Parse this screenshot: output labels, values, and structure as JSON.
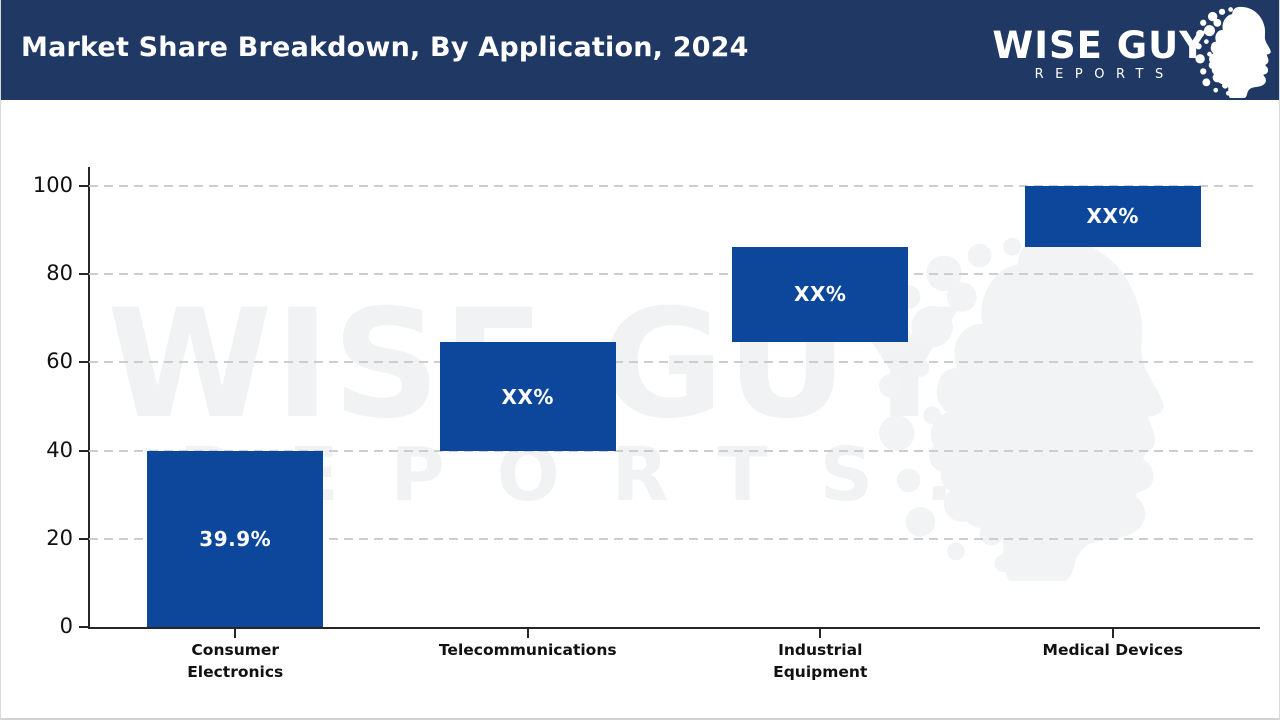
{
  "header": {
    "title": "Market Share Breakdown, By Application, 2024",
    "logo": {
      "line1": "WISE GUY",
      "line2": "REPORTS"
    }
  },
  "watermark": {
    "line1": "WISE GUY.",
    "line2": "REPORTS."
  },
  "chart_data": {
    "type": "bar",
    "subtype": "waterfall",
    "title": "Market Share Breakdown, By Application, 2024",
    "categories": [
      "Consumer\nElectronics",
      "Telecommunications",
      "Industrial\nEquipment",
      "Medical Devices"
    ],
    "segments": [
      {
        "category": "Consumer Electronics",
        "start": 0,
        "end": 39.9,
        "value": 39.9,
        "label": "39.9%"
      },
      {
        "category": "Telecommunications",
        "start": 39.9,
        "end": 64.6,
        "value": 24.7,
        "label": "XX%"
      },
      {
        "category": "Industrial Equipment",
        "start": 64.6,
        "end": 86.2,
        "value": 21.6,
        "label": "XX%"
      },
      {
        "category": "Medical Devices",
        "start": 86.2,
        "end": 100,
        "value": 13.8,
        "label": "XX%"
      }
    ],
    "xlabel": "",
    "ylabel": "",
    "ylim": [
      0,
      100
    ],
    "yticks": [
      0,
      20,
      40,
      60,
      80,
      100
    ],
    "grid": "horizontal-dashed",
    "legend": "none",
    "bar_color": "#0c479c",
    "bar_label_color": "#ffffff"
  },
  "colors": {
    "header_bg": "#203864",
    "bar": "#0c479c",
    "axis": "#262626",
    "grid": "#cdcdcd",
    "watermark": "#f1f2f4"
  }
}
